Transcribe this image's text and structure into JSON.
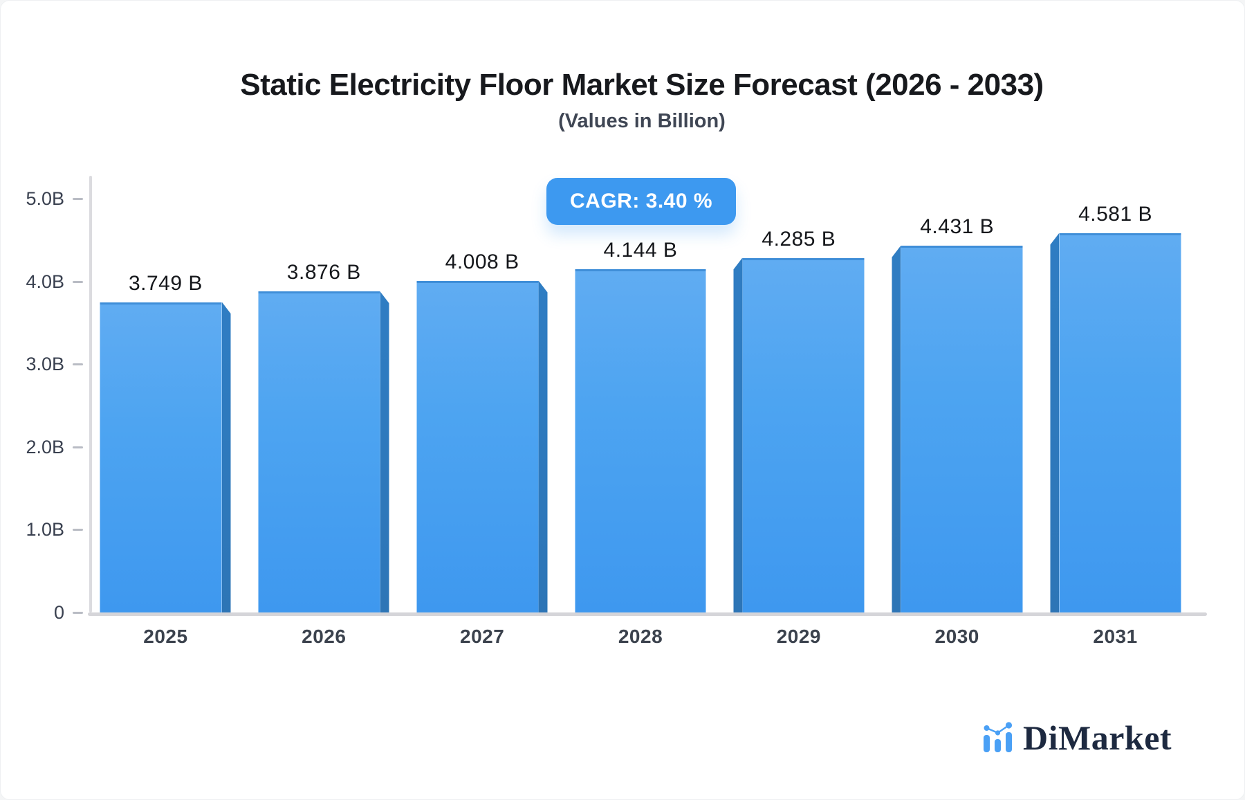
{
  "header": {
    "title": "Static Electricity Floor Market Size Forecast (2026 - 2033)",
    "subtitle": "(Values in Billion)"
  },
  "badge": {
    "label": "CAGR: 3.40 %",
    "bg_color": "#3d99f0",
    "text_color": "#ffffff"
  },
  "chart_data": {
    "type": "bar",
    "title": "Static Electricity Floor Market Size Forecast (2026 - 2033)",
    "subtitle": "(Values in Billion)",
    "annotation": "CAGR: 3.40 %",
    "categories": [
      "2025",
      "2026",
      "2027",
      "2028",
      "2029",
      "2030",
      "2031"
    ],
    "values": [
      3.749,
      3.876,
      4.008,
      4.144,
      4.285,
      4.431,
      4.581
    ],
    "value_labels": [
      "3.749 B",
      "3.876 B",
      "4.008 B",
      "4.144 B",
      "4.285 B",
      "4.431 B",
      "4.581 B"
    ],
    "xlabel": "",
    "ylabel": "",
    "ylim": [
      0,
      5
    ],
    "y_ticks": [
      {
        "label": "5.0B",
        "value": 5
      },
      {
        "label": "4.0B",
        "value": 4
      },
      {
        "label": "3.0B",
        "value": 3
      },
      {
        "label": "2.0B",
        "value": 2
      },
      {
        "label": "1.0B",
        "value": 1
      },
      {
        "label": "0",
        "value": 0
      }
    ],
    "grid": false,
    "legend": false,
    "colors": {
      "bar_face_top": "#60acf2",
      "bar_face_bottom": "#3e98ef",
      "bar_side": "#2e7abc",
      "bar_top_edge": "#3f8ed8",
      "axis_line": "#dbdbdf",
      "baseline": "#d5d5d9",
      "tick_label": "#3a4150",
      "value_label": "#15171b"
    }
  },
  "logo": {
    "text": "DiMarket",
    "icon": "mini-bar-chart-icon",
    "icon_color": "#4aa0f5",
    "text_color": "#1d2940"
  }
}
